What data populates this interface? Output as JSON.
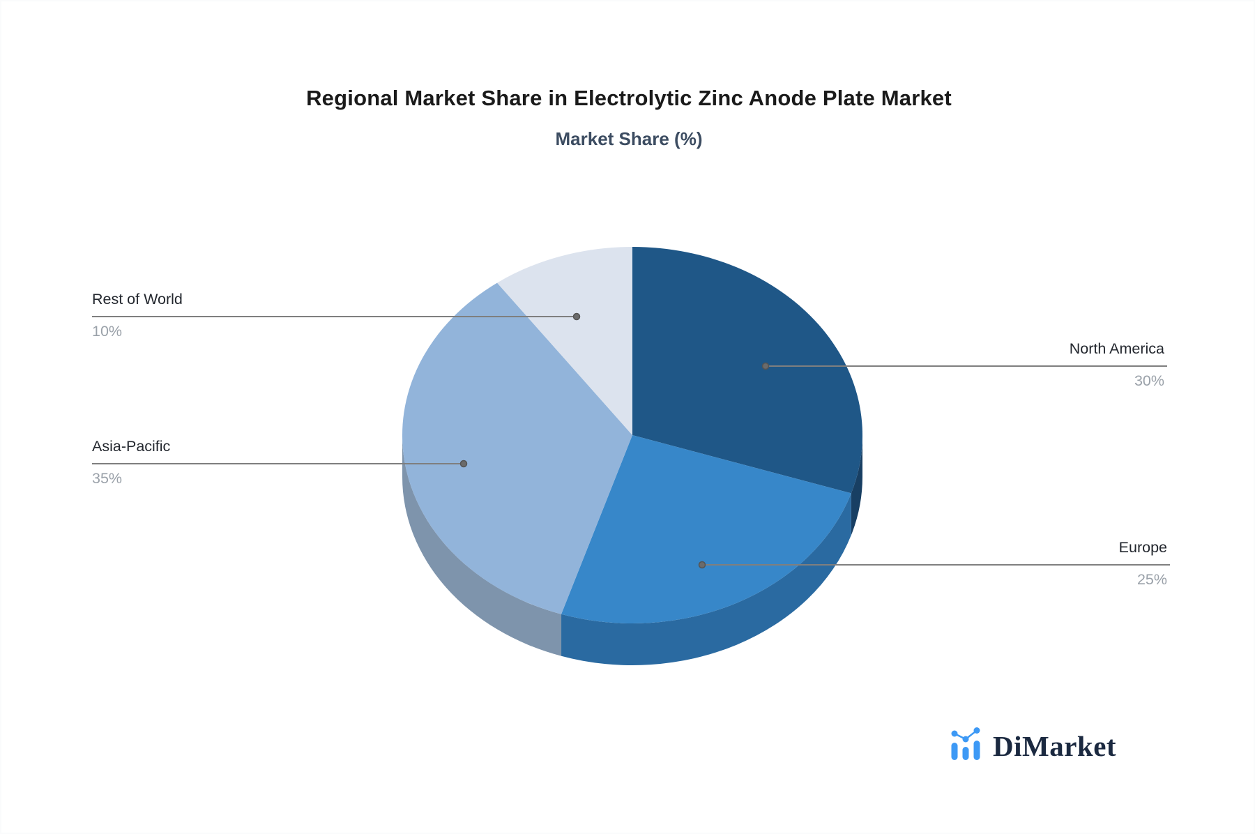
{
  "chart_data": {
    "type": "pie",
    "style": "3d",
    "title": "Regional Market Share in Electrolytic Zinc Anode Plate Market",
    "subtitle": "Market Share (%)",
    "value_suffix": "%",
    "start_angle_deg": 0,
    "direction": "clockwise",
    "legend_position": "callouts",
    "slices": [
      {
        "label": "North America",
        "value": 30,
        "display": "30%",
        "color": "#1F5787",
        "side_color": "#183F63"
      },
      {
        "label": "Europe",
        "value": 25,
        "display": "25%",
        "color": "#3787C9",
        "side_color": "#2A6AA1"
      },
      {
        "label": "Asia-Pacific",
        "value": 35,
        "display": "35%",
        "color": "#92B4DA",
        "side_color": "#7E94AC"
      },
      {
        "label": "Rest of World",
        "value": 10,
        "display": "10%",
        "color": "#DCE3EE",
        "side_color": "#C5CFDD"
      }
    ]
  },
  "branding": {
    "logo_text": "DiMarket",
    "logo_icon": "bar-line-chart-icon"
  },
  "colors": {
    "background": "#FFFFFF",
    "title": "#1A1A1A",
    "subtitle": "#3C4C61",
    "label": "#23272E",
    "percent": "#9AA1A9",
    "leader_line": "#7F7F7F",
    "leader_dot": "#6B6B6B",
    "logo_text": "#1B2940",
    "logo_icon": "#3D99F5"
  }
}
